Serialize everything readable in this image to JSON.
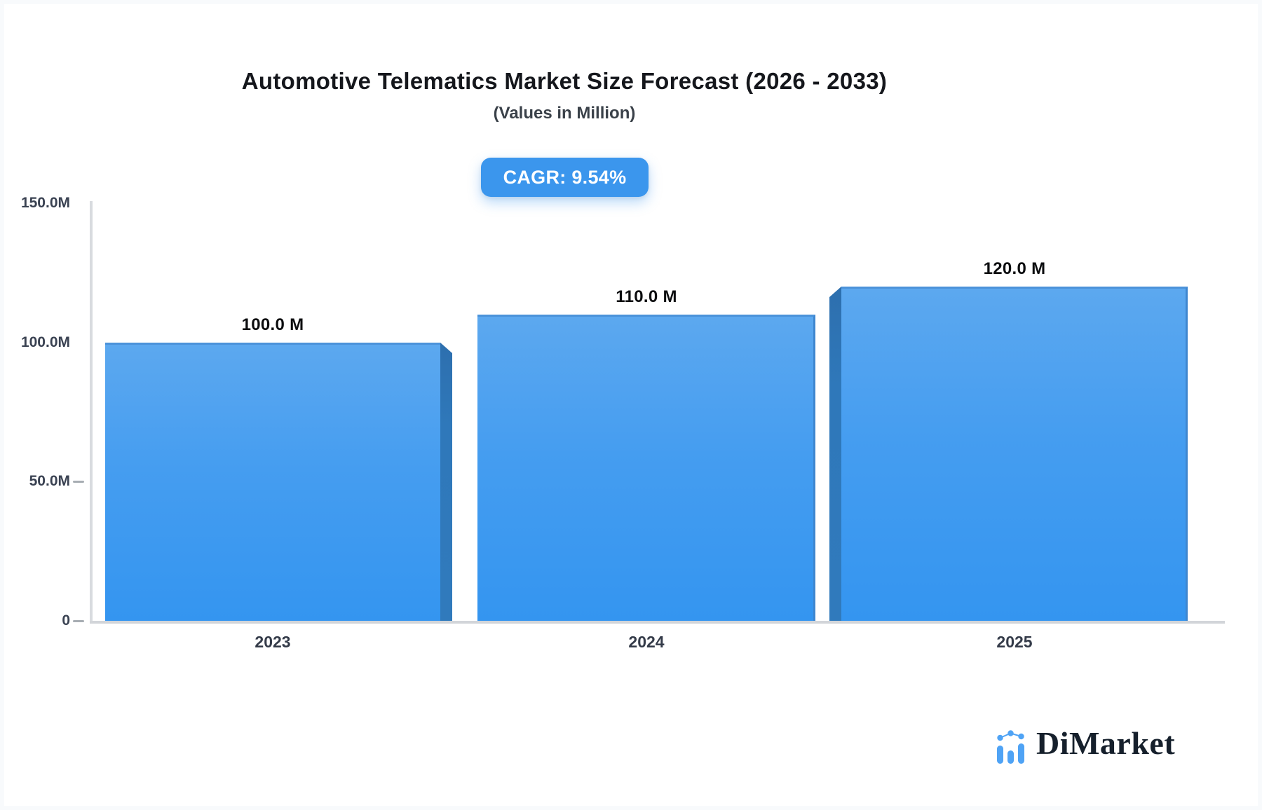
{
  "chart_data": {
    "type": "bar",
    "title": "Automotive Telematics Market Size Forecast (2026 - 2033)",
    "subtitle": "(Values in Million)",
    "cagr_label": "CAGR: 9.54%",
    "cagr_value": "9.54%",
    "unit": "Million",
    "categories": [
      "2023",
      "2024",
      "2025"
    ],
    "values": [
      100.0,
      110.0,
      120.0
    ],
    "value_labels": [
      "100.0 M",
      "110.0 M",
      "120.0 M"
    ],
    "ylim": [
      0,
      150
    ],
    "yticks": [
      {
        "label": "150.0M",
        "value": 150,
        "tick_mark": false
      },
      {
        "label": "100.0M",
        "value": 100,
        "tick_mark": false
      },
      {
        "label": "50.0M",
        "value": 50,
        "tick_mark": true
      },
      {
        "label": "0",
        "value": 0,
        "tick_mark": true
      }
    ],
    "grid": false,
    "legend": false,
    "colors": {
      "bar_gradient_top": "#5CA8EF",
      "bar_gradient_bottom": "#3495F0",
      "bar_top_edge": "#4C93DA",
      "bar_side_3d": "#2F78BA",
      "badge_background": "#3B96ED",
      "badge_text": "#FFFFFF",
      "axis_line": "#D5D8DC",
      "title_text": "#15171C",
      "axis_label_text": "#3A4252"
    }
  },
  "branding": {
    "logo_text": "DiMarket",
    "logo_icon": "bar-chart-with-trend-dots",
    "logo_icon_color": "#4FA3F5",
    "logo_text_color": "#16202C"
  }
}
